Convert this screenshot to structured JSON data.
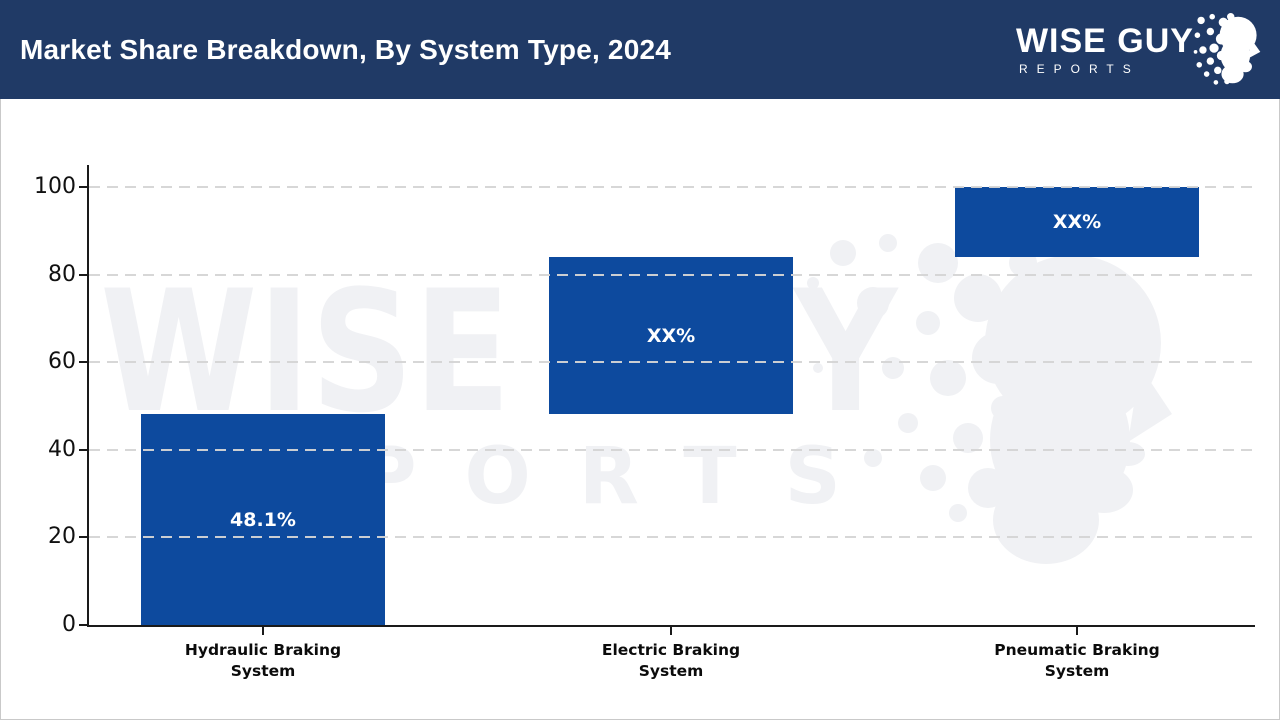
{
  "header": {
    "title": "Market Share Breakdown, By System Type, 2024",
    "logo": {
      "line1": "WISE GUY",
      "line2": "REPORTS"
    }
  },
  "watermark": {
    "line1": "WISE GUY",
    "line2": "REPORTS"
  },
  "colors": {
    "header_bg": "#203a66",
    "bar": "#0d4a9e",
    "bar_label_text": "#ffffff",
    "grid": "#d5d5d5",
    "axis": "#1a1a1a",
    "watermark": "#f0f1f4"
  },
  "chart_data": {
    "type": "bar",
    "subtype": "floating-waterfall",
    "title": "Market Share Breakdown, By System Type, 2024",
    "categories": [
      "Hydraulic Braking System",
      "Electric Braking System",
      "Pneumatic Braking System"
    ],
    "bars": [
      {
        "category": "Hydraulic Braking System",
        "from": 0,
        "to": 48.1,
        "label": "48.1%"
      },
      {
        "category": "Electric Braking System",
        "from": 48.1,
        "to": 84,
        "label": "XX%"
      },
      {
        "category": "Pneumatic Braking System",
        "from": 84,
        "to": 100,
        "label": "XX%"
      }
    ],
    "xlabel": "",
    "ylabel": "",
    "ylim": [
      0,
      100
    ],
    "yticks": [
      0,
      20,
      40,
      60,
      80,
      100
    ],
    "grid": "horizontal-dashed",
    "grid_above_bars": true,
    "legend": "none"
  }
}
